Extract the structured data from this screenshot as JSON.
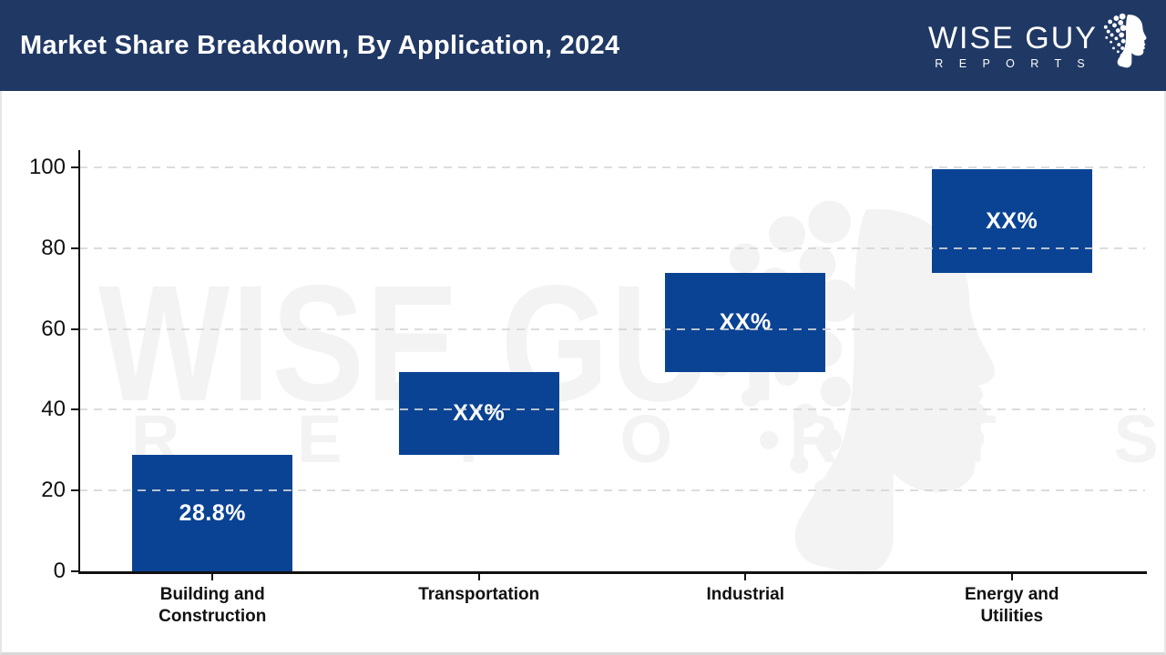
{
  "header": {
    "title": "Market Share Breakdown, By Application, 2024",
    "logo": {
      "line1": "WISE GUY",
      "line2": "R E P O R T S",
      "icon": "dotted-profile-face-icon"
    }
  },
  "watermark": {
    "line1": "WISE GUY",
    "line2": "R E P O R T S",
    "icon": "dotted-profile-face-icon"
  },
  "chart_data": {
    "type": "bar",
    "subtype": "floating-waterfall-bars",
    "title": "Market Share Breakdown, By Application, 2024",
    "categories": [
      "Building and\nConstruction",
      "Transportation",
      "Industrial",
      "Energy and\nUtilities"
    ],
    "segments": [
      {
        "category": "Building and Construction",
        "start": 0,
        "end": 28.8,
        "label": "28.8%"
      },
      {
        "category": "Transportation",
        "start": 28.8,
        "end": 49.3,
        "label": "XX%"
      },
      {
        "category": "Industrial",
        "start": 49.3,
        "end": 73.9,
        "label": "XX%"
      },
      {
        "category": "Energy and Utilities",
        "start": 73.9,
        "end": 99.5,
        "label": "XX%"
      }
    ],
    "yticks": [
      0,
      20,
      40,
      60,
      80,
      100
    ],
    "ylim": [
      0,
      104.5
    ],
    "xlabel": "",
    "ylabel": "",
    "grid": "horizontal-dashed",
    "legend": "none"
  },
  "colors": {
    "header_bg": "#203864",
    "title_text": "#ffffff",
    "bar": "#0a4394",
    "bar_label": "#ffffff",
    "axis": "#111111",
    "grid": "#d6d6d6",
    "watermark": "#f3f3f3"
  }
}
